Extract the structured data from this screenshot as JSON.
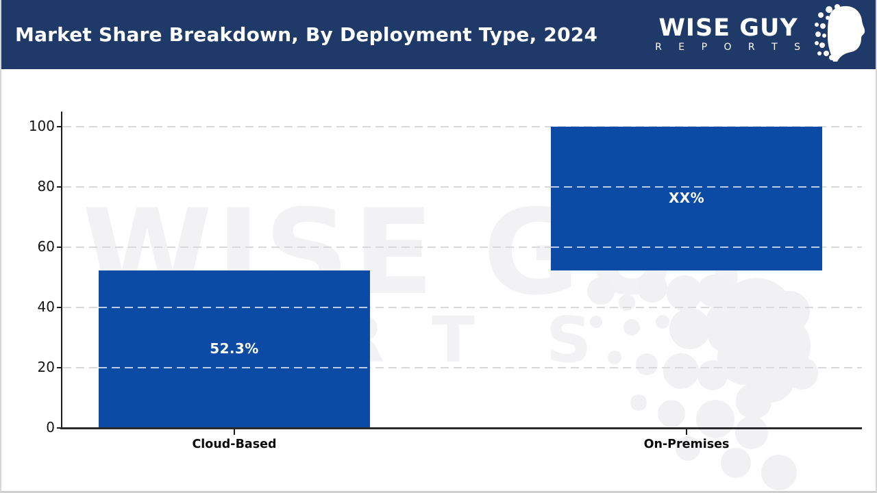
{
  "header": {
    "title": "Market Share Breakdown, By Deployment Type, 2024",
    "brand": {
      "wordmark_line1": "WISE GUY",
      "wordmark_line2": "R E P O R T S",
      "head_icon": "dotted-head-profile-icon"
    }
  },
  "colors": {
    "header_bg": "#1f3a68",
    "bar": "#0b4aa5",
    "grid": "#d9d9d9",
    "axis": "#1a1a1a",
    "watermark": "#f2f2f4",
    "bar_label": "#ffffff"
  },
  "watermark": {
    "text_large": "WISE GUY",
    "letters": [
      "R",
      "T",
      "S"
    ]
  },
  "chart_data": {
    "type": "bar",
    "subtype": "floating-percentage-bars",
    "title": "Market Share Breakdown, By Deployment Type, 2024",
    "categories": [
      "Cloud-Based",
      "On-Premises"
    ],
    "bars": [
      {
        "category": "Cloud-Based",
        "start": 0,
        "end": 52.3,
        "value": 52.3,
        "label": "52.3%"
      },
      {
        "category": "On-Premises",
        "start": 52.3,
        "end": 100,
        "value": 47.7,
        "label": "XX%"
      }
    ],
    "xlabel": "",
    "ylabel": "",
    "yticks": [
      0,
      20,
      40,
      60,
      80,
      100
    ],
    "ylim": [
      0,
      105
    ],
    "grid": "dashed-horizontal",
    "legend": "none",
    "bar_color": "#0b4aa5"
  }
}
